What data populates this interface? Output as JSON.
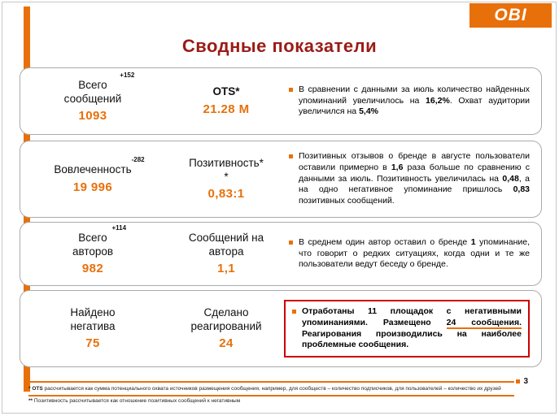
{
  "logo": {
    "text": "OBI"
  },
  "title": "Сводные показатели",
  "colors": {
    "orange": "#E8700A",
    "dark_red": "#9B1B17",
    "red_box": "#CC0000"
  },
  "rows": [
    {
      "left": {
        "label": "Всего\nсообщений",
        "delta": "+152",
        "value": "1093"
      },
      "mid": {
        "label": "OTS*",
        "value": "21.28 М"
      },
      "note": [
        {
          "t": "В сравнении с данными за июль количество найденных упоминаний увеличилось на "
        },
        {
          "t": "16,2%",
          "b": true
        },
        {
          "t": ". Охват аудитории увеличился на "
        },
        {
          "t": "5,4%",
          "b": true
        }
      ]
    },
    {
      "left": {
        "label": "Вовлеченность",
        "delta": "-282",
        "value": "19 996"
      },
      "mid": {
        "label": "Позитивность*\n*",
        "value": "0,83:1"
      },
      "note": [
        {
          "t": "Позитивных отзывов о бренде в августе пользователи оставили примерно в "
        },
        {
          "t": "1,6",
          "b": true
        },
        {
          "t": " раза больше по сравнению с данными за июль. Позитивность увеличилась на "
        },
        {
          "t": "0,48",
          "b": true
        },
        {
          "t": ", а на одно негативное упоминание пришлось "
        },
        {
          "t": "0,83",
          "b": true
        },
        {
          "t": " позитивных сообщений."
        }
      ]
    },
    {
      "left": {
        "label": "Всего\nавторов",
        "delta": "+114",
        "value": "982"
      },
      "mid": {
        "label": "Сообщений на\nавтора",
        "value": "1,1"
      },
      "note": [
        {
          "t": "В среднем один автор оставил о бренде "
        },
        {
          "t": "1",
          "b": true
        },
        {
          "t": " упоминание, что говорит о редких ситуациях, когда одни и те же пользователи ведут беседу о бренде."
        }
      ]
    },
    {
      "left": {
        "label": "Найдено\nнегатива",
        "value": "75"
      },
      "mid": {
        "label": "Сделано\nреагирований",
        "value": "24"
      },
      "note": [
        {
          "t": "Отработаны ",
          "b": true
        },
        {
          "t": "11",
          "b": true
        },
        {
          "t": " площадок с негативными упоминаниями. Размещено ",
          "b": true
        },
        {
          "t": "24 сообщения.",
          "b": true,
          "u": true
        },
        {
          "t": " Реагирования производились на наиболее проблемные сообщения.",
          "b": true
        }
      ]
    }
  ],
  "footer": {
    "footnote1": [
      {
        "t": "* ",
        "b": true
      },
      {
        "t": "OTS",
        "b": true
      },
      {
        "t": " рассчитывается как сумма потенциального охвата источников размещения сообщения, например, для сообществ – количество подписчиков, для пользователей – количество их друзей"
      }
    ],
    "footnote2": [
      {
        "t": "** ",
        "b": true
      },
      {
        "t": "Позитивность рассчитывается как отношение позитивных сообщений к негативным"
      }
    ],
    "page": "3"
  },
  "icons": {
    "bullet": "orange-square"
  }
}
